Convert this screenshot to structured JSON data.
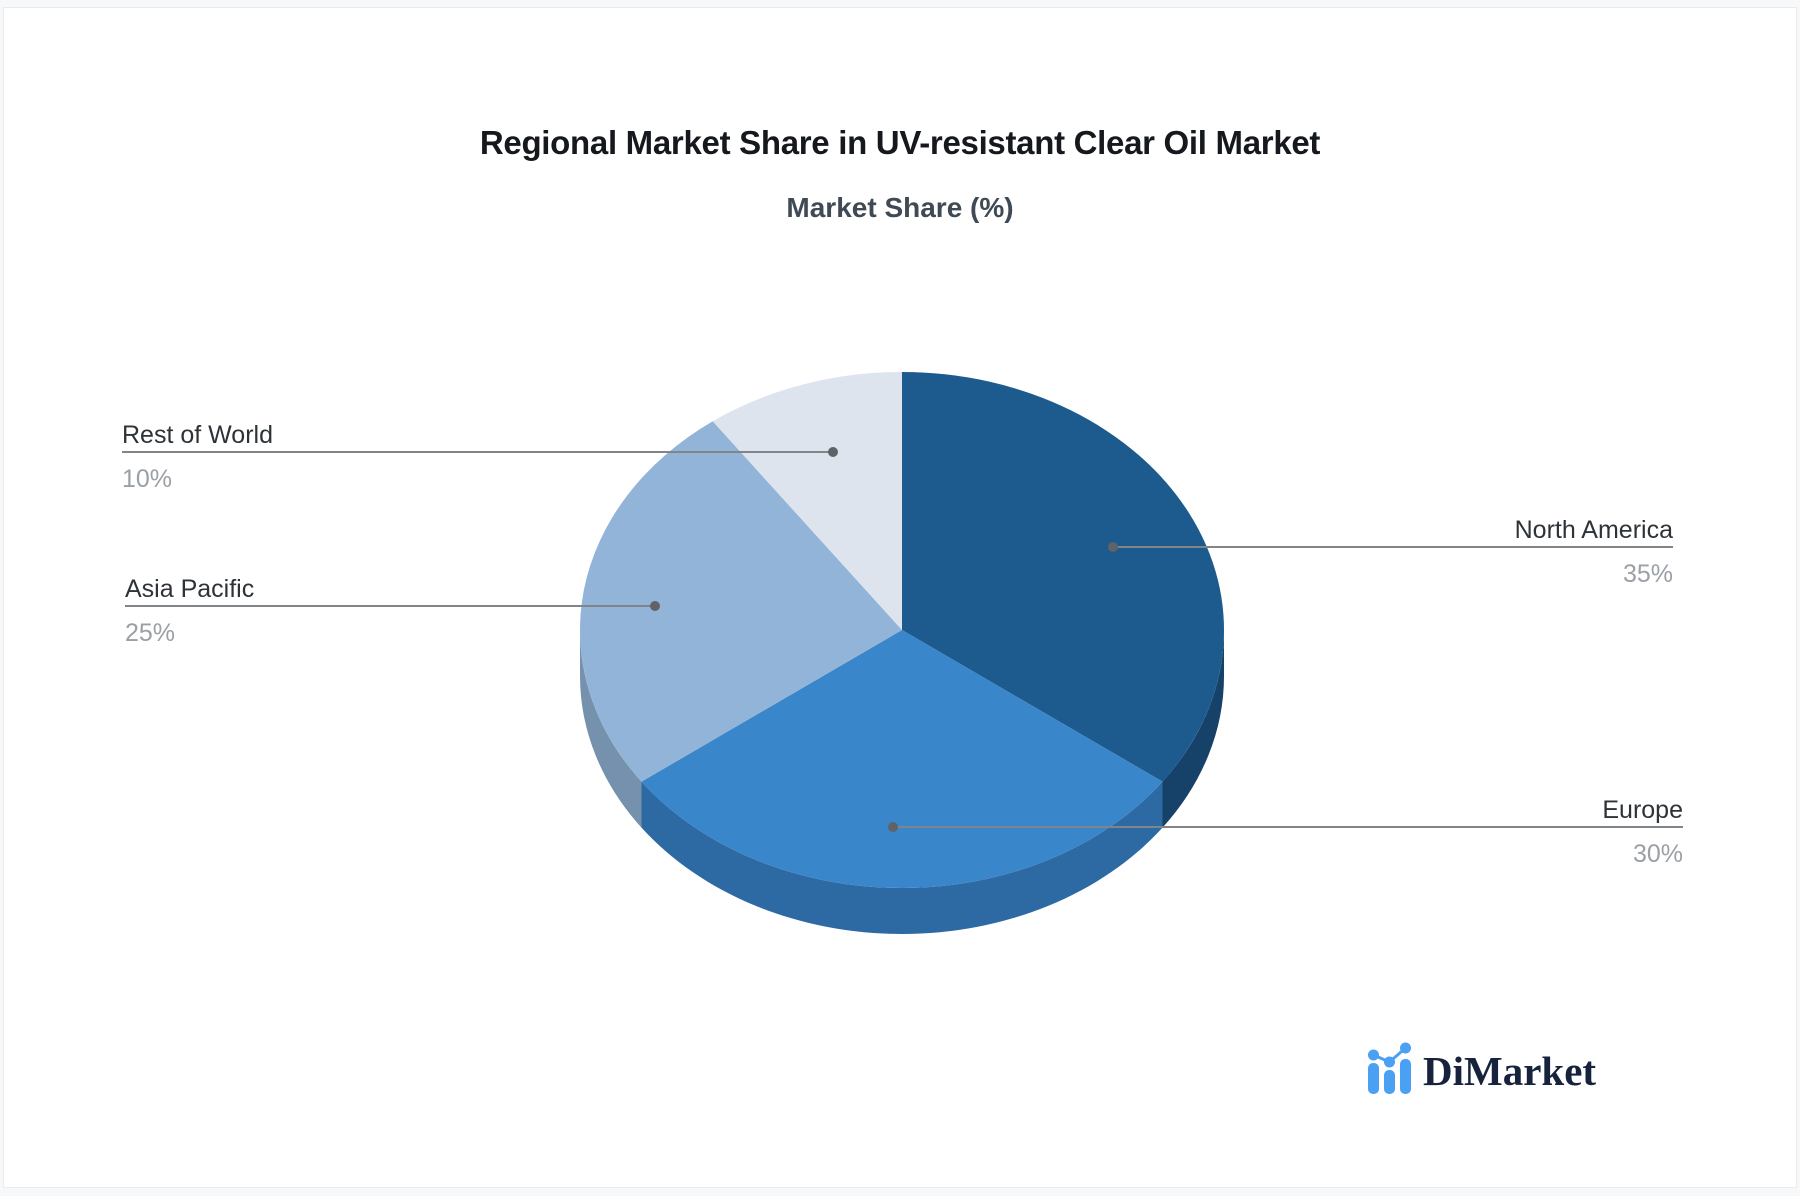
{
  "page": {
    "background_color": "#f7f8f9",
    "card_background_color": "#ffffff"
  },
  "header": {
    "title": "Regional Market Share in UV-resistant Clear Oil Market",
    "subtitle": "Market Share (%)"
  },
  "chart_data": {
    "type": "pie",
    "style": "3d-pie",
    "title": "Regional Market Share in UV-resistant Clear Oil Market",
    "subtitle": "Market Share (%)",
    "unit": "%",
    "start_angle_deg": -90,
    "direction": "clockwise",
    "legend_position": "none",
    "categories": [
      "North America",
      "Europe",
      "Asia Pacific",
      "Rest of World"
    ],
    "values": [
      35,
      30,
      25,
      10
    ],
    "slices": [
      {
        "label": "North America",
        "value": 35,
        "percent_label": "35%",
        "color": "#1d5b8f",
        "side_color": "#164169",
        "label_side": "right"
      },
      {
        "label": "Europe",
        "value": 30,
        "percent_label": "30%",
        "color": "#3a86ca",
        "side_color": "#2d6aa4",
        "label_side": "right"
      },
      {
        "label": "Asia Pacific",
        "value": 25,
        "percent_label": "25%",
        "color": "#91b4d8",
        "side_color": "#7591ad",
        "label_side": "left"
      },
      {
        "label": "Rest of World",
        "value": 10,
        "percent_label": "10%",
        "color": "#dde4ee",
        "side_color": "#b9c4d4",
        "label_side": "left"
      }
    ],
    "label_line_color": "#818589",
    "label_dot_color": "#5f6368",
    "label_text_color": "#2e3338",
    "percent_text_color": "#9aa0a6"
  },
  "logo": {
    "text": "DiMarket",
    "icon": "bar-chart-sparkline-icon",
    "icon_color": "#4aa0f2",
    "text_color": "#17233c"
  }
}
